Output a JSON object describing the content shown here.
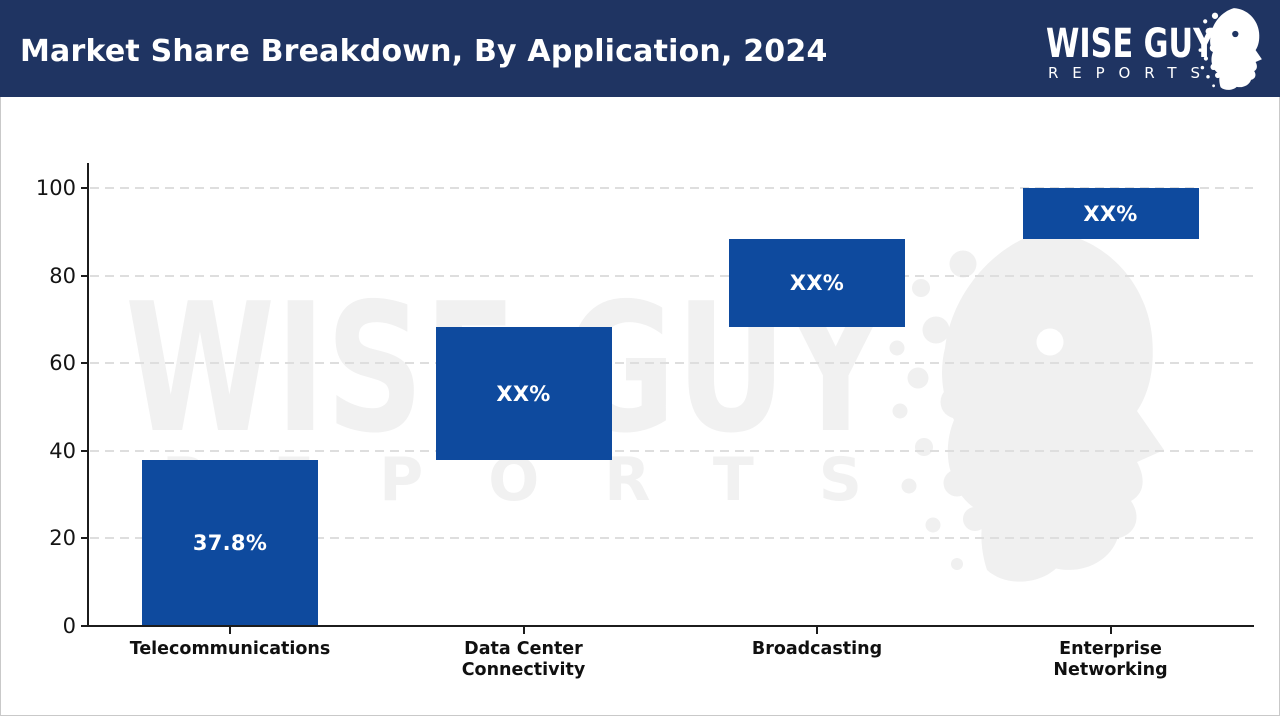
{
  "header": {
    "title": "Market Share Breakdown, By Application, 2024",
    "bg_color": "#1f3462",
    "logo": {
      "line1": "WISE GUY",
      "line2": "REPORTS"
    }
  },
  "watermark": {
    "line1": "WISE GUY",
    "line2": "REPORTS"
  },
  "chart_data": {
    "type": "bar",
    "subtype": "floating segment (waterfall-style) market share bars",
    "title": "Market Share Breakdown, By Application, 2024",
    "categories": [
      "Telecommunications",
      "Data Center Connectivity",
      "Broadcasting",
      "Enterprise Networking"
    ],
    "category_lines": [
      [
        "Telecommunications"
      ],
      [
        "Data Center",
        "Connectivity"
      ],
      [
        "Broadcasting"
      ],
      [
        "Enterprise",
        "Networking"
      ]
    ],
    "bar_labels": [
      "37.8%",
      "XX%",
      "XX%",
      "XX%"
    ],
    "bar_ranges": [
      [
        0,
        37.8
      ],
      [
        37.8,
        68.2
      ],
      [
        68.2,
        88.3
      ],
      [
        88.3,
        100
      ]
    ],
    "segment_values_est": [
      37.8,
      30.4,
      20.1,
      11.7
    ],
    "y_ticks": [
      0,
      20,
      40,
      60,
      80,
      100
    ],
    "ylim": [
      0,
      105
    ],
    "xlabel": "",
    "ylabel": "",
    "grid": "horizontal dashed",
    "legend": "none",
    "bar_color": "#0e4a9e",
    "bar_label_color": "#ffffff"
  }
}
